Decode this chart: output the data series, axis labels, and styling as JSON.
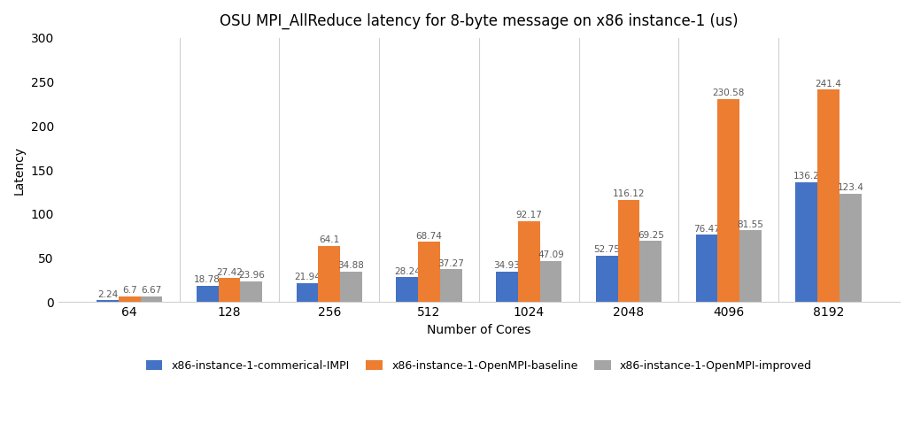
{
  "title": "OSU MPI_AllReduce latency for 8-byte message on x86 instance-1 (us)",
  "xlabel": "Number of Cores",
  "ylabel": "Latency",
  "categories": [
    "64",
    "128",
    "256",
    "512",
    "1024",
    "2048",
    "4096",
    "8192"
  ],
  "series": [
    {
      "label": "x86-instance-1-commerical-IMPI",
      "color": "#4472C4",
      "values": [
        2.24,
        18.78,
        21.94,
        28.24,
        34.93,
        52.75,
        76.47,
        136.2
      ]
    },
    {
      "label": "x86-instance-1-OpenMPI-baseline",
      "color": "#ED7D31",
      "values": [
        6.7,
        27.42,
        64.1,
        68.74,
        92.17,
        116.12,
        230.58,
        241.4
      ]
    },
    {
      "label": "x86-instance-1-OpenMPI-improved",
      "color": "#A5A5A5",
      "values": [
        6.67,
        23.96,
        34.88,
        37.27,
        47.09,
        69.25,
        81.55,
        123.4
      ]
    }
  ],
  "ylim": [
    0,
    300
  ],
  "yticks": [
    0,
    50,
    100,
    150,
    200,
    250,
    300
  ],
  "bar_width": 0.22,
  "title_fontsize": 12,
  "label_fontsize": 10,
  "tick_fontsize": 10,
  "annotation_fontsize": 7.5,
  "legend_fontsize": 9,
  "background_color": "#ffffff",
  "vline_color": "#d0d0d0",
  "spine_color": "#d0d0d0",
  "text_color": "#595959"
}
